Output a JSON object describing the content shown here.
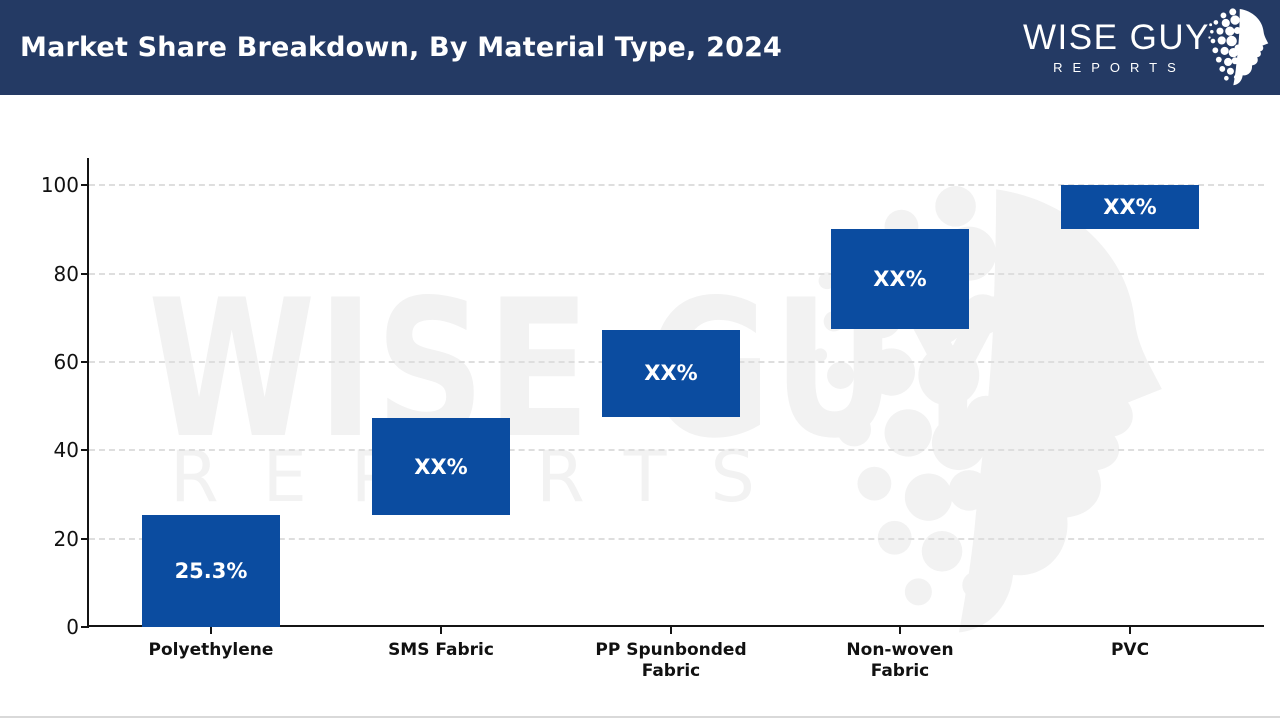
{
  "header": {
    "title": "Market Share Breakdown, By Material Type, 2024",
    "brand": {
      "name_top": "WISE GUY",
      "name_bottom": "REPORTS"
    }
  },
  "watermark": {
    "text_top": "WISE GUY",
    "text_bottom": "REPORTS"
  },
  "chart_data": {
    "type": "bar",
    "variant": "floating-waterfall",
    "title": "Market Share Breakdown, By Material Type, 2024",
    "categories": [
      "Polyethylene",
      "SMS Fabric",
      "PP Spunbonded Fabric",
      "Non-woven Fabric",
      "PVC"
    ],
    "segments": [
      {
        "category": "Polyethylene",
        "start": 0,
        "end": 25.3,
        "label": "25.3%"
      },
      {
        "category": "SMS Fabric",
        "start": 25.3,
        "end": 47.3,
        "label": "XX%"
      },
      {
        "category": "PP Spunbonded Fabric",
        "start": 47.5,
        "end": 67.3,
        "label": "XX%"
      },
      {
        "category": "Non-woven Fabric",
        "start": 67.5,
        "end": 90,
        "label": "XX%"
      },
      {
        "category": "PVC",
        "start": 90,
        "end": 100,
        "label": "XX%"
      }
    ],
    "yticks": [
      0,
      20,
      40,
      60,
      80,
      100
    ],
    "ylim": [
      0,
      106
    ],
    "xlabel": "",
    "ylabel": "",
    "grid": "horizontal-dashed",
    "legend": "none",
    "bar_color": "#0b4ca0",
    "value_label_color": "#ffffff"
  },
  "colors": {
    "header_bg": "#243a64",
    "bar": "#0b4ca0",
    "grid": "#dedede",
    "axis": "#141414",
    "watermark": "#f2f2f2"
  }
}
